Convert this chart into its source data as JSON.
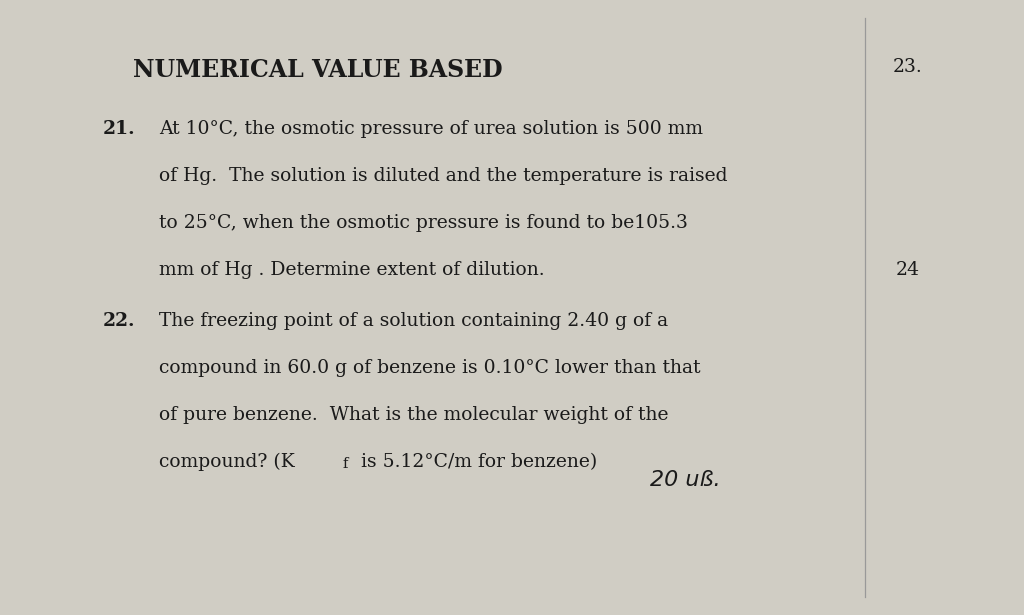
{
  "background_color": "#d0cdc4",
  "page_color": "#e6e3d8",
  "title": "NUMERICAL VALUE BASED",
  "title_fontsize": 17,
  "right_number_23": "23.",
  "right_number_24": "24",
  "q21_number": "21.",
  "q21_line1": "At 10°C, the osmotic pressure of urea solution is 500 mm",
  "q21_line2": "of Hg.  The solution is diluted and the temperature is raised",
  "q21_line3": "to 25°C, when the osmotic pressure is found to be105.3",
  "q21_line4": "mm of Hg . Determine extent of dilution.",
  "q22_number": "22.",
  "q22_line1": "The freezing point of a solution containing 2.40 g of a",
  "q22_line2": "compound in 60.0 g of benzene is 0.10°C lower than that",
  "q22_line3": "of pure benzene.  What is the molecular weight of the",
  "q22_line4": "compound? (K",
  "q22_line4b": "f",
  "q22_line4c": " is 5.12°C/m for benzene)",
  "q22_handwritten": "20 uß.",
  "text_color": "#1a1a1a",
  "font_size_body": 13.5,
  "vertical_line_x": 0.845
}
